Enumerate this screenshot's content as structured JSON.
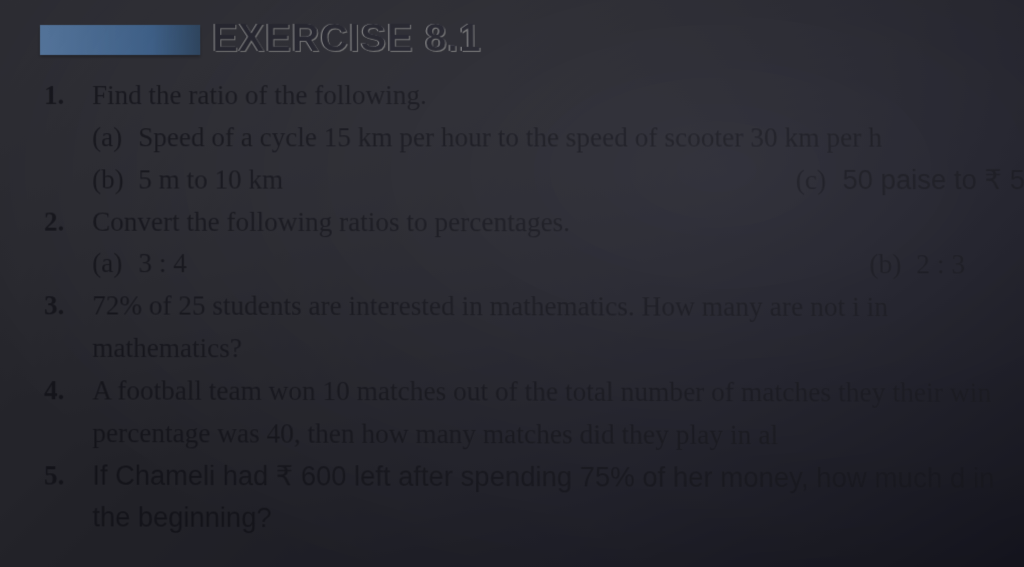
{
  "title": "EXERCISE 8.1",
  "questions": {
    "q1": {
      "stem": "Find the ratio of the following.",
      "a": "Speed of a cycle 15 km per hour to the speed of scooter 30 km per h",
      "b": "5 m to 10 km",
      "c": "50 paise to ₹ 5"
    },
    "q2": {
      "stem": "Convert the following ratios to percentages.",
      "a": "3 : 4",
      "b": "2 : 3"
    },
    "q3": "72% of 25 students are interested in mathematics. How many are not i​ in mathematics?",
    "q4": "A football team won 10 matches out of the total number of matches they their win percentage was 40, then how many matches did they play in al",
    "q5": "If Chameli had ₹ 600 left after spending 75% of her money, how much d in the beginning?"
  },
  "labels": {
    "a": "(a)",
    "b": "(b)",
    "c": "(c)"
  }
}
